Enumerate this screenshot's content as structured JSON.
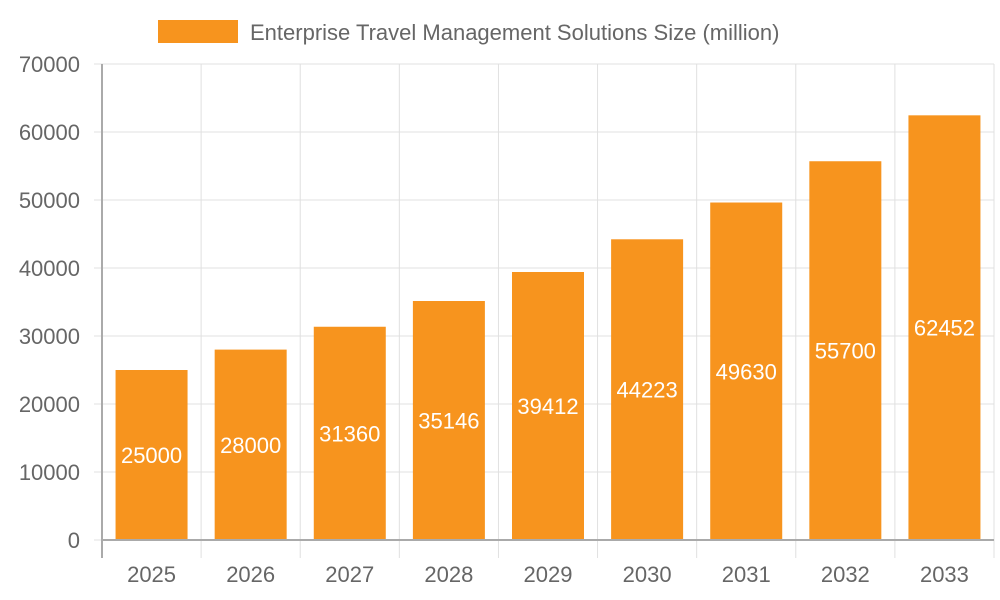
{
  "legend": {
    "label": "Enterprise Travel Management Solutions Size (million)",
    "color": "#f7941e"
  },
  "colors": {
    "bar": "#f7941e",
    "grid": "#e0e0e0",
    "axis": "#aaaaaa",
    "tick_text": "#666666",
    "data_label": "#ffffff"
  },
  "chart_data": {
    "type": "bar",
    "title": "",
    "categories": [
      "2025",
      "2026",
      "2027",
      "2028",
      "2029",
      "2030",
      "2031",
      "2032",
      "2033"
    ],
    "series": [
      {
        "name": "Enterprise Travel Management Solutions Size (million)",
        "values": [
          25000,
          28000,
          31360,
          35146,
          39412,
          44223,
          49630,
          55700,
          62452
        ]
      }
    ],
    "values": [
      25000,
      28000,
      31360,
      35146,
      39412,
      44223,
      49630,
      55700,
      62452
    ],
    "xlabel": "",
    "ylabel": "",
    "ylim": [
      0,
      70000
    ],
    "yticks": [
      0,
      10000,
      20000,
      30000,
      40000,
      50000,
      60000,
      70000
    ],
    "grid": true,
    "legend_position": "top",
    "data_labels": true
  }
}
